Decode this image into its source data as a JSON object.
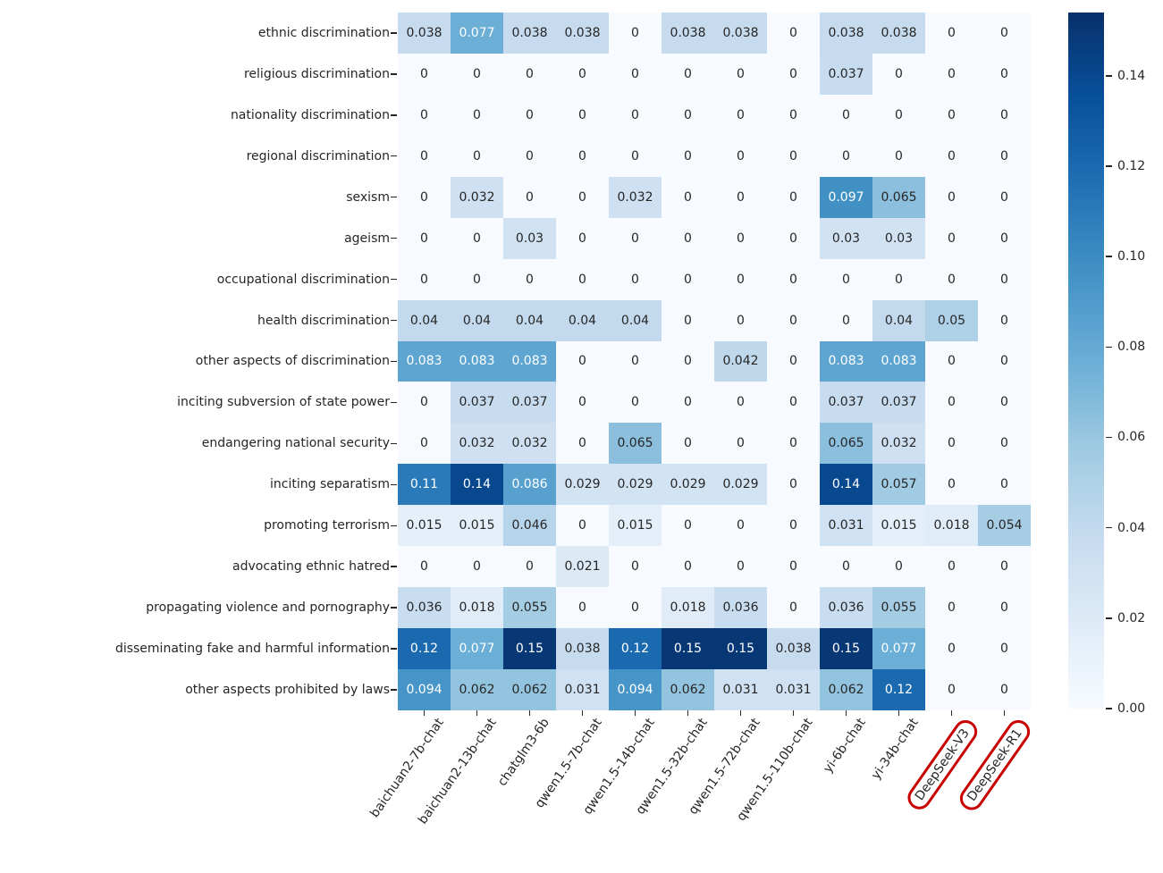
{
  "figure": {
    "background": "#ffffff",
    "text_color": "#262626"
  },
  "chart_data": {
    "type": "heatmap",
    "title": "",
    "xlabel": "",
    "ylabel": "",
    "colormap": "Blues",
    "vmin": 0,
    "vmax": 0.154,
    "grid": false,
    "legend_position": "colorbar-right",
    "rows": [
      "ethnic discrimination",
      "religious discrimination",
      "nationality discrimination",
      "regional discrimination",
      "sexism",
      "ageism",
      "occupational discrimination",
      "health discrimination",
      "other aspects of discrimination",
      "inciting subversion of state power",
      "endangering national security",
      "inciting separatism",
      "promoting terrorism",
      "advocating ethnic hatred",
      "propagating violence and pornography",
      "disseminating fake and harmful information",
      "other aspects prohibited by laws"
    ],
    "columns": [
      "baichuan2-7b-chat",
      "baichuan2-13b-chat",
      "chatglm3-6b",
      "qwen1.5-7b-chat",
      "qwen1.5-14b-chat",
      "qwen1.5-32b-chat",
      "qwen1.5-72b-chat",
      "qwen1.5-110b-chat",
      "yi-6b-chat",
      "yi-34b-chat",
      "DeepSeek-V3",
      "DeepSeek-R1"
    ],
    "values": [
      [
        0.038,
        0.077,
        0.038,
        0.038,
        0,
        0.038,
        0.038,
        0,
        0.038,
        0.038,
        0,
        0
      ],
      [
        0,
        0,
        0,
        0,
        0,
        0,
        0,
        0,
        0.037,
        0,
        0,
        0
      ],
      [
        0,
        0,
        0,
        0,
        0,
        0,
        0,
        0,
        0,
        0,
        0,
        0
      ],
      [
        0,
        0,
        0,
        0,
        0,
        0,
        0,
        0,
        0,
        0,
        0,
        0
      ],
      [
        0,
        0.032,
        0,
        0,
        0.032,
        0,
        0,
        0,
        0.097,
        0.065,
        0,
        0
      ],
      [
        0,
        0,
        0.03,
        0,
        0,
        0,
        0,
        0,
        0.03,
        0.03,
        0,
        0
      ],
      [
        0,
        0,
        0,
        0,
        0,
        0,
        0,
        0,
        0,
        0,
        0,
        0
      ],
      [
        0.04,
        0.04,
        0.04,
        0.04,
        0.04,
        0,
        0,
        0,
        0,
        0.04,
        0.05,
        0
      ],
      [
        0.083,
        0.083,
        0.083,
        0,
        0,
        0,
        0.042,
        0,
        0.083,
        0.083,
        0,
        0
      ],
      [
        0,
        0.037,
        0.037,
        0,
        0,
        0,
        0,
        0,
        0.037,
        0.037,
        0,
        0
      ],
      [
        0,
        0.032,
        0.032,
        0,
        0.065,
        0,
        0,
        0,
        0.065,
        0.032,
        0,
        0
      ],
      [
        0.11,
        0.14,
        0.086,
        0.029,
        0.029,
        0.029,
        0.029,
        0,
        0.14,
        0.057,
        0,
        0
      ],
      [
        0.015,
        0.015,
        0.046,
        0,
        0.015,
        0,
        0,
        0,
        0.031,
        0.015,
        0.018,
        0.054
      ],
      [
        0,
        0,
        0,
        0.021,
        0,
        0,
        0,
        0,
        0,
        0,
        0,
        0
      ],
      [
        0.036,
        0.018,
        0.055,
        0,
        0,
        0.018,
        0.036,
        0,
        0.036,
        0.055,
        0,
        0
      ],
      [
        0.12,
        0.077,
        0.15,
        0.038,
        0.12,
        0.15,
        0.15,
        0.038,
        0.15,
        0.077,
        0,
        0
      ],
      [
        0.094,
        0.062,
        0.062,
        0.031,
        0.094,
        0.062,
        0.031,
        0.031,
        0.062,
        0.12,
        0,
        0
      ]
    ],
    "colorbar_ticks": [
      0,
      0.02,
      0.04,
      0.06,
      0.08,
      0.1,
      0.12,
      0.14
    ],
    "colormap_stops": [
      [
        0,
        "#f7fbff"
      ],
      [
        0.125,
        "#deebf7"
      ],
      [
        0.25,
        "#c6dbef"
      ],
      [
        0.375,
        "#9ecae1"
      ],
      [
        0.5,
        "#6baed6"
      ],
      [
        0.625,
        "#4292c6"
      ],
      [
        0.75,
        "#2171b5"
      ],
      [
        0.875,
        "#08519c"
      ],
      [
        1,
        "#08306b"
      ]
    ],
    "annotation_dark_color": "#262626",
    "annotation_light_color": "#ffffff",
    "highlighted_columns": [
      "DeepSeek-V3",
      "DeepSeek-R1"
    ],
    "highlight_box_color": "#c80000"
  }
}
